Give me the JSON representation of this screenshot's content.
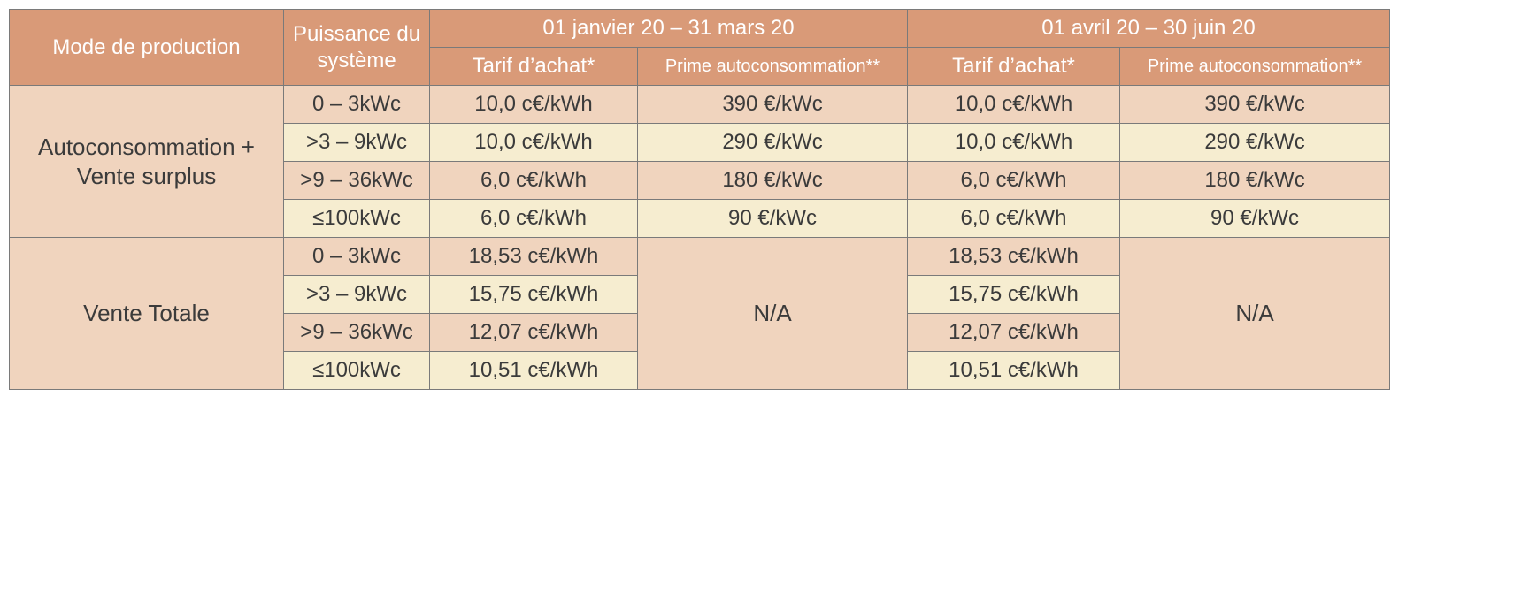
{
  "table": {
    "colors": {
      "header_bg": "#d99a78",
      "header_fg": "#ffffff",
      "bandA": "#f0d4be",
      "bandB": "#f6edd0",
      "border": "#7a7a7a",
      "text": "#3b3b3b"
    },
    "fonts": {
      "base_size_pt": 18,
      "sub_size_pt": 15,
      "family": "Segoe UI, Arial, sans-serif"
    },
    "header": {
      "mode": "Mode de production",
      "power": "Puissance du système",
      "period1": "01 janvier 20 – 31 mars 20",
      "period2": "01 avril 20 – 30 juin 20",
      "tarif": "Tarif d’achat*",
      "prime": "Prime autoconsommation**"
    },
    "modes": [
      {
        "label": "Autoconsommation + Vente surplus",
        "rows": [
          {
            "power": "0 – 3kWc",
            "p1_tarif": "10,0 c€/kWh",
            "p1_prime": "390 €/kWc",
            "p2_tarif": "10,0 c€/kWh",
            "p2_prime": "390 €/kWc"
          },
          {
            "power": ">3 – 9kWc",
            "p1_tarif": "10,0 c€/kWh",
            "p1_prime": "290 €/kWc",
            "p2_tarif": "10,0 c€/kWh",
            "p2_prime": "290 €/kWc"
          },
          {
            "power": ">9 – 36kWc",
            "p1_tarif": "6,0 c€/kWh",
            "p1_prime": "180 €/kWc",
            "p2_tarif": "6,0 c€/kWh",
            "p2_prime": "180 €/kWc"
          },
          {
            "power": "≤100kWc",
            "p1_tarif": "6,0 c€/kWh",
            "p1_prime": "90 €/kWc",
            "p2_tarif": "6,0 c€/kWh",
            "p2_prime": "90 €/kWc"
          }
        ]
      },
      {
        "label": "Vente Totale",
        "prime_na": "N/A",
        "rows": [
          {
            "power": "0 – 3kWc",
            "p1_tarif": "18,53 c€/kWh",
            "p2_tarif": "18,53 c€/kWh"
          },
          {
            "power": ">3 – 9kWc",
            "p1_tarif": "15,75 c€/kWh",
            "p2_tarif": "15,75 c€/kWh"
          },
          {
            "power": ">9 – 36kWc",
            "p1_tarif": "12,07 c€/kWh",
            "p2_tarif": "12,07 c€/kWh"
          },
          {
            "power": "≤100kWc",
            "p1_tarif": "10,51 c€/kWh",
            "p2_tarif": "10,51 c€/kWh"
          }
        ]
      }
    ]
  }
}
